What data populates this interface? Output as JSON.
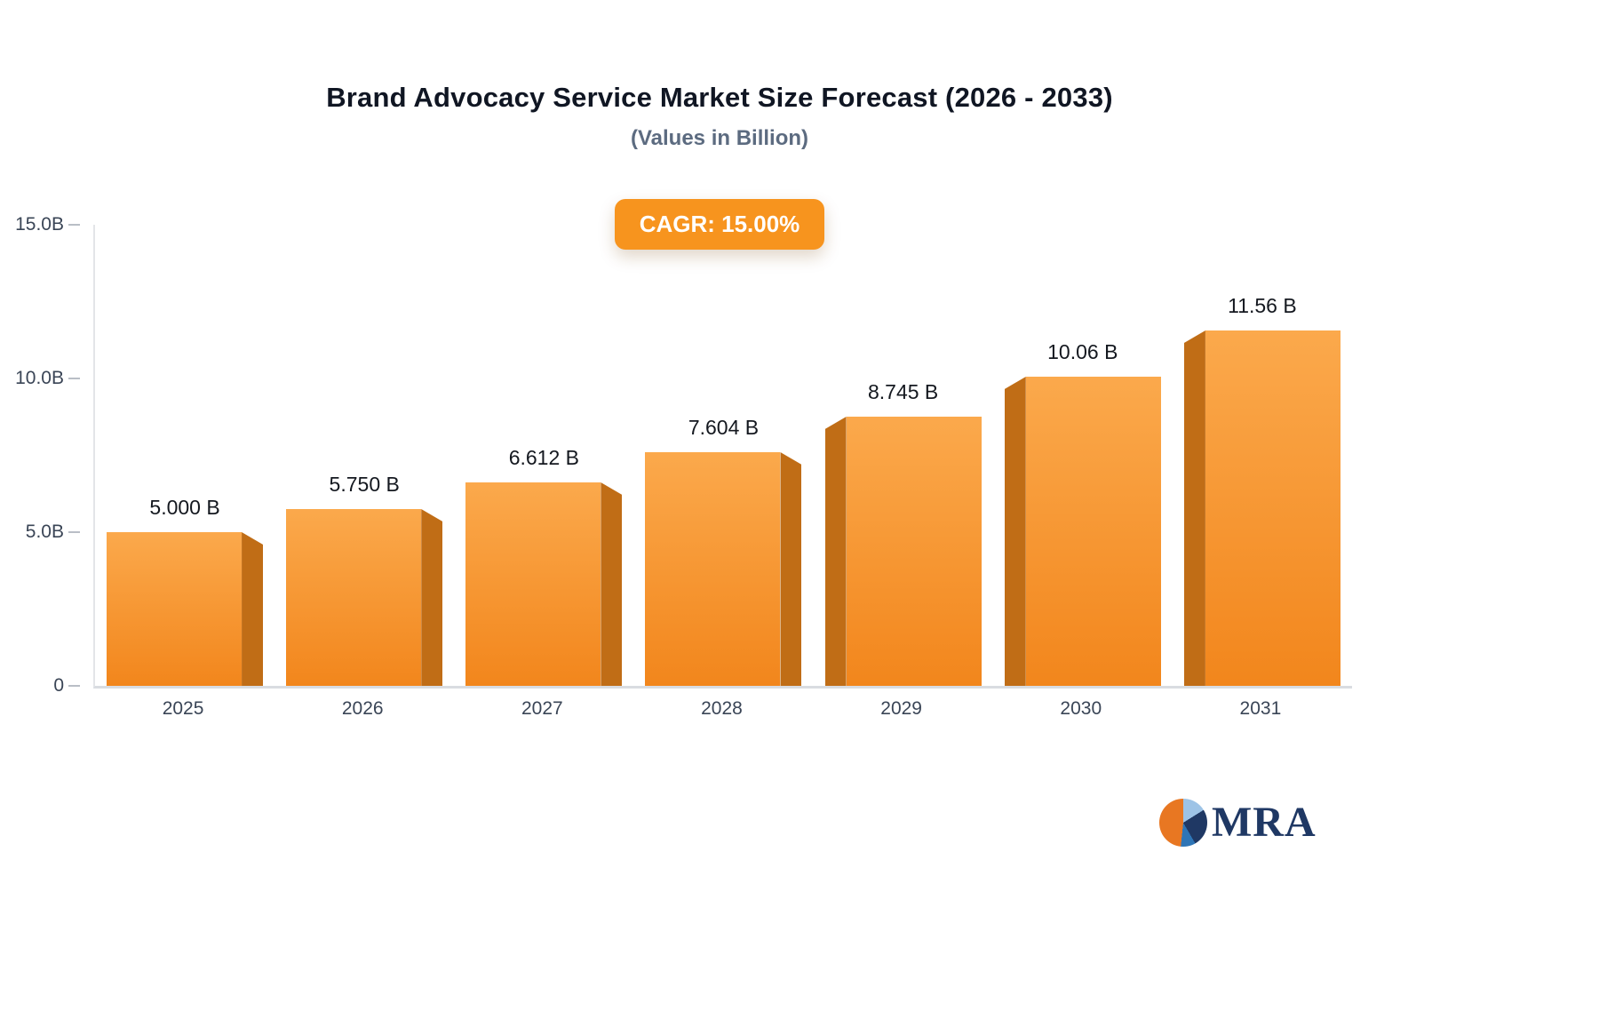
{
  "header": {
    "title": "Brand Advocacy Service Market Size Forecast (2026 - 2033)",
    "subtitle": "(Values in Billion)",
    "cagr_badge": "CAGR: 15.00%"
  },
  "chart_data": {
    "type": "bar",
    "title": "Brand Advocacy Service Market Size Forecast (2026 - 2033)",
    "subtitle": "(Values in Billion)",
    "xlabel": "",
    "ylabel": "",
    "categories": [
      "2025",
      "2026",
      "2027",
      "2028",
      "2029",
      "2030",
      "2031"
    ],
    "values": [
      5.0,
      5.75,
      6.612,
      7.604,
      8.745,
      10.06,
      11.56
    ],
    "value_labels": [
      "5.000 B",
      "5.750 B",
      "6.612 B",
      "7.604 B",
      "8.745 B",
      "10.06 B",
      "11.56 B"
    ],
    "ylim": [
      0,
      15
    ],
    "yticks": [
      {
        "value": 15,
        "label": "15.0B"
      },
      {
        "value": 10,
        "label": "10.0B"
      },
      {
        "value": 5,
        "label": "5.0B"
      },
      {
        "value": 0,
        "label": "0"
      }
    ],
    "grid": false,
    "legend": "none",
    "annotations": [
      "CAGR: 15.00%"
    ]
  },
  "colors": {
    "bar_top": "#fba94c",
    "bar_bottom": "#f2861c",
    "bar_side": "#c06d16",
    "badge_bg": "#f7941e",
    "badge_text": "#ffffff",
    "title": "#101623",
    "subtitle": "#5c6b80",
    "axis_text": "#3a4556",
    "value_text": "#14181f",
    "axis_line": "#d9dce1",
    "logo_navy": "#1f3864",
    "logo_orange": "#e87722",
    "logo_lightblue": "#9dc3e6",
    "logo_midblue": "#2e75b6"
  },
  "logo": {
    "text": "MRA"
  }
}
